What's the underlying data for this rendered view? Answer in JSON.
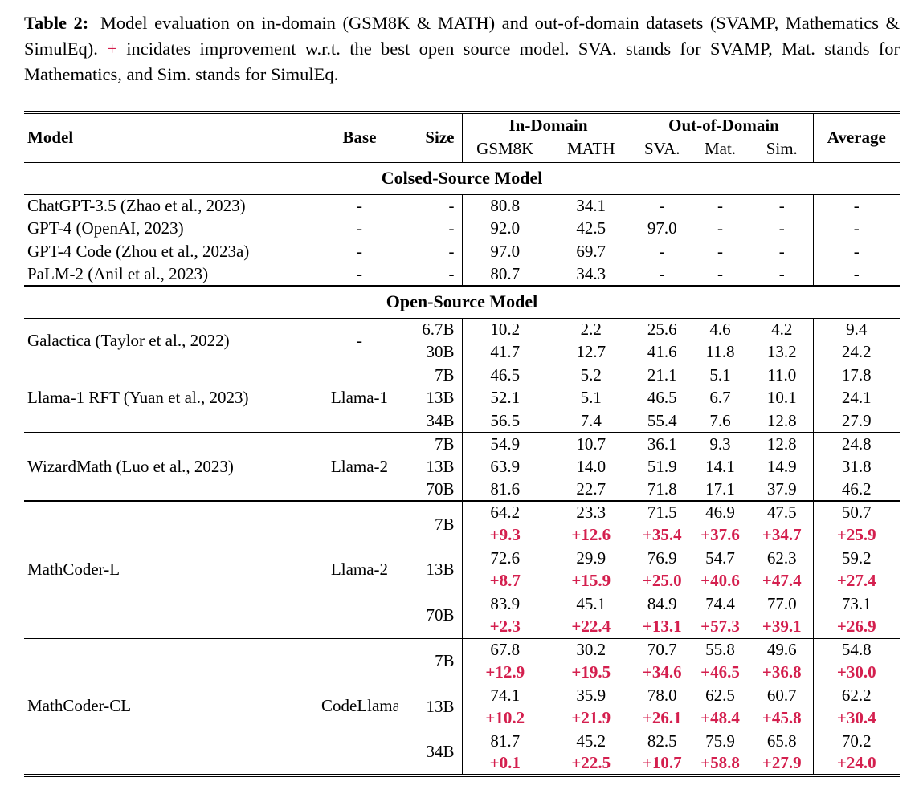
{
  "colors": {
    "accent_red": "#d41f4e",
    "text": "#000000",
    "background": "#ffffff"
  },
  "caption": {
    "label": "Table 2:",
    "text_before_plus": "Model evaluation on in-domain (GSM8K & MATH) and out-of-domain datasets (SVAMP, Mathematics & SimulEq).",
    "plus_sign": "+",
    "text_after_plus": "incidates improvement w.r.t. the best open source model. SVA. stands for SVAMP, Mat. stands for Mathematics, and Sim. stands for SimulEq."
  },
  "table": {
    "header": {
      "model": "Model",
      "base": "Base",
      "size": "Size",
      "in_domain": "In-Domain",
      "out_of_domain": "Out-of-Domain",
      "average": "Average",
      "sub_columns": [
        "GSM8K",
        "MATH",
        "SVA.",
        "Mat.",
        "Sim."
      ]
    },
    "sections": [
      {
        "title": "Colsed-Source Model",
        "rule_above": "thin",
        "groups": [
          {
            "model": "ChatGPT-3.5 (Zhao et al., 2023)",
            "base": "-",
            "rule_above": null,
            "rows": [
              {
                "size": "-",
                "values": [
                  "80.8",
                  "34.1",
                  "-",
                  "-",
                  "-",
                  "-"
                ]
              }
            ]
          },
          {
            "model": "GPT-4 (OpenAI, 2023)",
            "base": "-",
            "rule_above": null,
            "rows": [
              {
                "size": "-",
                "values": [
                  "92.0",
                  "42.5",
                  "97.0",
                  "-",
                  "-",
                  "-"
                ]
              }
            ]
          },
          {
            "model": "GPT-4 Code (Zhou et al., 2023a)",
            "base": "-",
            "rule_above": null,
            "rows": [
              {
                "size": "-",
                "values": [
                  "97.0",
                  "69.7",
                  "-",
                  "-",
                  "-",
                  "-"
                ]
              }
            ]
          },
          {
            "model": "PaLM-2 (Anil et al., 2023)",
            "base": "-",
            "rule_above": null,
            "rows": [
              {
                "size": "-",
                "values": [
                  "80.7",
                  "34.3",
                  "-",
                  "-",
                  "-",
                  "-"
                ]
              }
            ]
          }
        ]
      },
      {
        "title": "Open-Source Model",
        "rule_above": "thick",
        "groups": [
          {
            "model": "Galactica (Taylor et al., 2022)",
            "base": "-",
            "rule_above": null,
            "rows": [
              {
                "size": "6.7B",
                "values": [
                  "10.2",
                  "2.2",
                  "25.6",
                  "4.6",
                  "4.2",
                  "9.4"
                ]
              },
              {
                "size": "30B",
                "values": [
                  "41.7",
                  "12.7",
                  "41.6",
                  "11.8",
                  "13.2",
                  "24.2"
                ]
              }
            ]
          },
          {
            "model": "Llama-1 RFT (Yuan et al., 2023)",
            "base": "Llama-1",
            "rule_above": "thin",
            "rows": [
              {
                "size": "7B",
                "values": [
                  "46.5",
                  "5.2",
                  "21.1",
                  "5.1",
                  "11.0",
                  "17.8"
                ]
              },
              {
                "size": "13B",
                "values": [
                  "52.1",
                  "5.1",
                  "46.5",
                  "6.7",
                  "10.1",
                  "24.1"
                ]
              },
              {
                "size": "34B",
                "values": [
                  "56.5",
                  "7.4",
                  "55.4",
                  "7.6",
                  "12.8",
                  "27.9"
                ]
              }
            ]
          },
          {
            "model": "WizardMath (Luo et al., 2023)",
            "base": "Llama-2",
            "rule_above": "thin",
            "rows": [
              {
                "size": "7B",
                "values": [
                  "54.9",
                  "10.7",
                  "36.1",
                  "9.3",
                  "12.8",
                  "24.8"
                ]
              },
              {
                "size": "13B",
                "values": [
                  "63.9",
                  "14.0",
                  "51.9",
                  "14.1",
                  "14.9",
                  "31.8"
                ]
              },
              {
                "size": "70B",
                "values": [
                  "81.6",
                  "22.7",
                  "71.8",
                  "17.1",
                  "37.9",
                  "46.2"
                ]
              }
            ]
          },
          {
            "model": "MathCoder-L",
            "base": "Llama-2",
            "rule_above": "thick",
            "rows": [
              {
                "size": "7B",
                "values": [
                  "64.2",
                  "23.3",
                  "71.5",
                  "46.9",
                  "47.5",
                  "50.7"
                ],
                "delta": [
                  "+9.3",
                  "+12.6",
                  "+35.4",
                  "+37.6",
                  "+34.7",
                  "+25.9"
                ]
              },
              {
                "size": "13B",
                "values": [
                  "72.6",
                  "29.9",
                  "76.9",
                  "54.7",
                  "62.3",
                  "59.2"
                ],
                "delta": [
                  "+8.7",
                  "+15.9",
                  "+25.0",
                  "+40.6",
                  "+47.4",
                  "+27.4"
                ]
              },
              {
                "size": "70B",
                "values": [
                  "83.9",
                  "45.1",
                  "84.9",
                  "74.4",
                  "77.0",
                  "73.1"
                ],
                "delta": [
                  "+2.3",
                  "+22.4",
                  "+13.1",
                  "+57.3",
                  "+39.1",
                  "+26.9"
                ]
              }
            ]
          },
          {
            "model": "MathCoder-CL",
            "base": "CodeLlama",
            "rule_above": "thin",
            "rows": [
              {
                "size": "7B",
                "values": [
                  "67.8",
                  "30.2",
                  "70.7",
                  "55.8",
                  "49.6",
                  "54.8"
                ],
                "delta": [
                  "+12.9",
                  "+19.5",
                  "+34.6",
                  "+46.5",
                  "+36.8",
                  "+30.0"
                ]
              },
              {
                "size": "13B",
                "values": [
                  "74.1",
                  "35.9",
                  "78.0",
                  "62.5",
                  "60.7",
                  "62.2"
                ],
                "delta": [
                  "+10.2",
                  "+21.9",
                  "+26.1",
                  "+48.4",
                  "+45.8",
                  "+30.4"
                ]
              },
              {
                "size": "34B",
                "values": [
                  "81.7",
                  "45.2",
                  "82.5",
                  "75.9",
                  "65.8",
                  "70.2"
                ],
                "delta": [
                  "+0.1",
                  "+22.5",
                  "+10.7",
                  "+58.8",
                  "+27.9",
                  "+24.0"
                ]
              }
            ]
          }
        ]
      }
    ]
  }
}
